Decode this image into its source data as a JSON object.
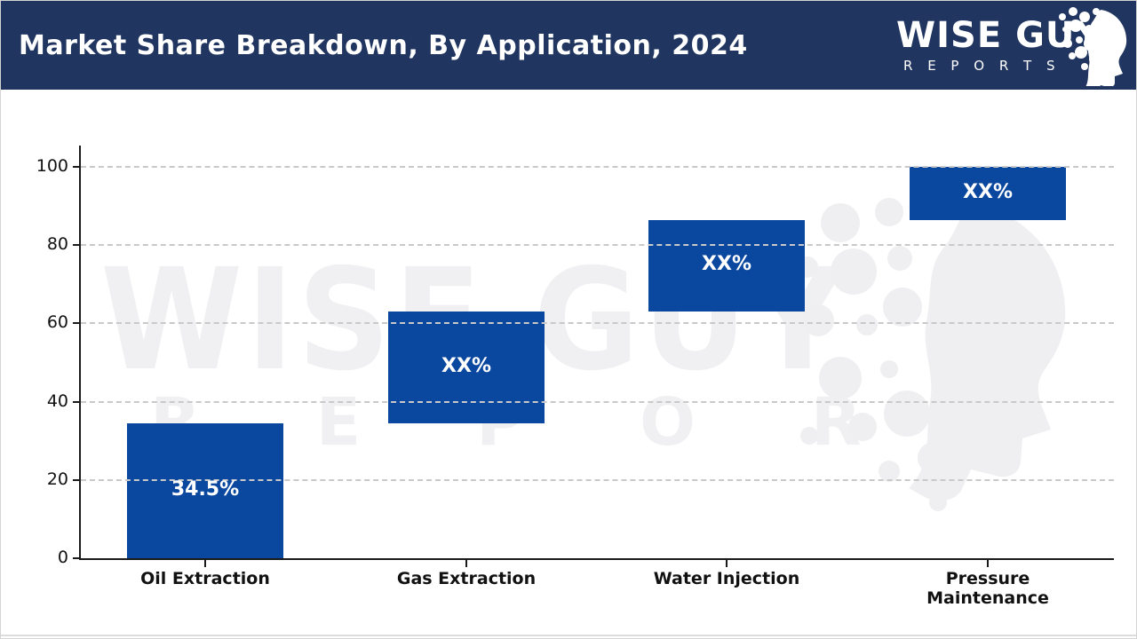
{
  "header": {
    "title": "Market Share Breakdown, By Application, 2024",
    "brand": {
      "name": "WISE GUY",
      "sub": "R E P O R T S"
    }
  },
  "watermark": {
    "line1": "WISE GUY",
    "line2": "REPORTS"
  },
  "colors": {
    "header_bg": "#203560",
    "bar": "#0a479f",
    "grid": "#c9c9c9",
    "axis": "#1a1a1a",
    "watermark": "#f0f0f2",
    "plot_bg": "#ffffff"
  },
  "chart_data": {
    "type": "bar",
    "subtype": "waterfall-breakdown",
    "title": "Market Share Breakdown, By Application, 2024",
    "categories": [
      "Oil Extraction",
      "Gas Extraction",
      "Water Injection",
      "Pressure Maintenance"
    ],
    "segments": [
      {
        "category": "Oil Extraction",
        "start": 0,
        "end": 34.5,
        "label": "34.5%"
      },
      {
        "category": "Gas Extraction",
        "start": 34.5,
        "end": 63,
        "label": "XX%"
      },
      {
        "category": "Water Injection",
        "start": 63,
        "end": 86.5,
        "label": "XX%"
      },
      {
        "category": "Pressure Maintenance",
        "start": 86.5,
        "end": 100,
        "label": "XX%"
      }
    ],
    "xlabel": "",
    "ylabel": "",
    "ylim": [
      0,
      100
    ],
    "yticks": [
      0,
      20,
      40,
      60,
      80,
      100
    ],
    "grid": "horizontal-dashed",
    "legend": "none"
  }
}
